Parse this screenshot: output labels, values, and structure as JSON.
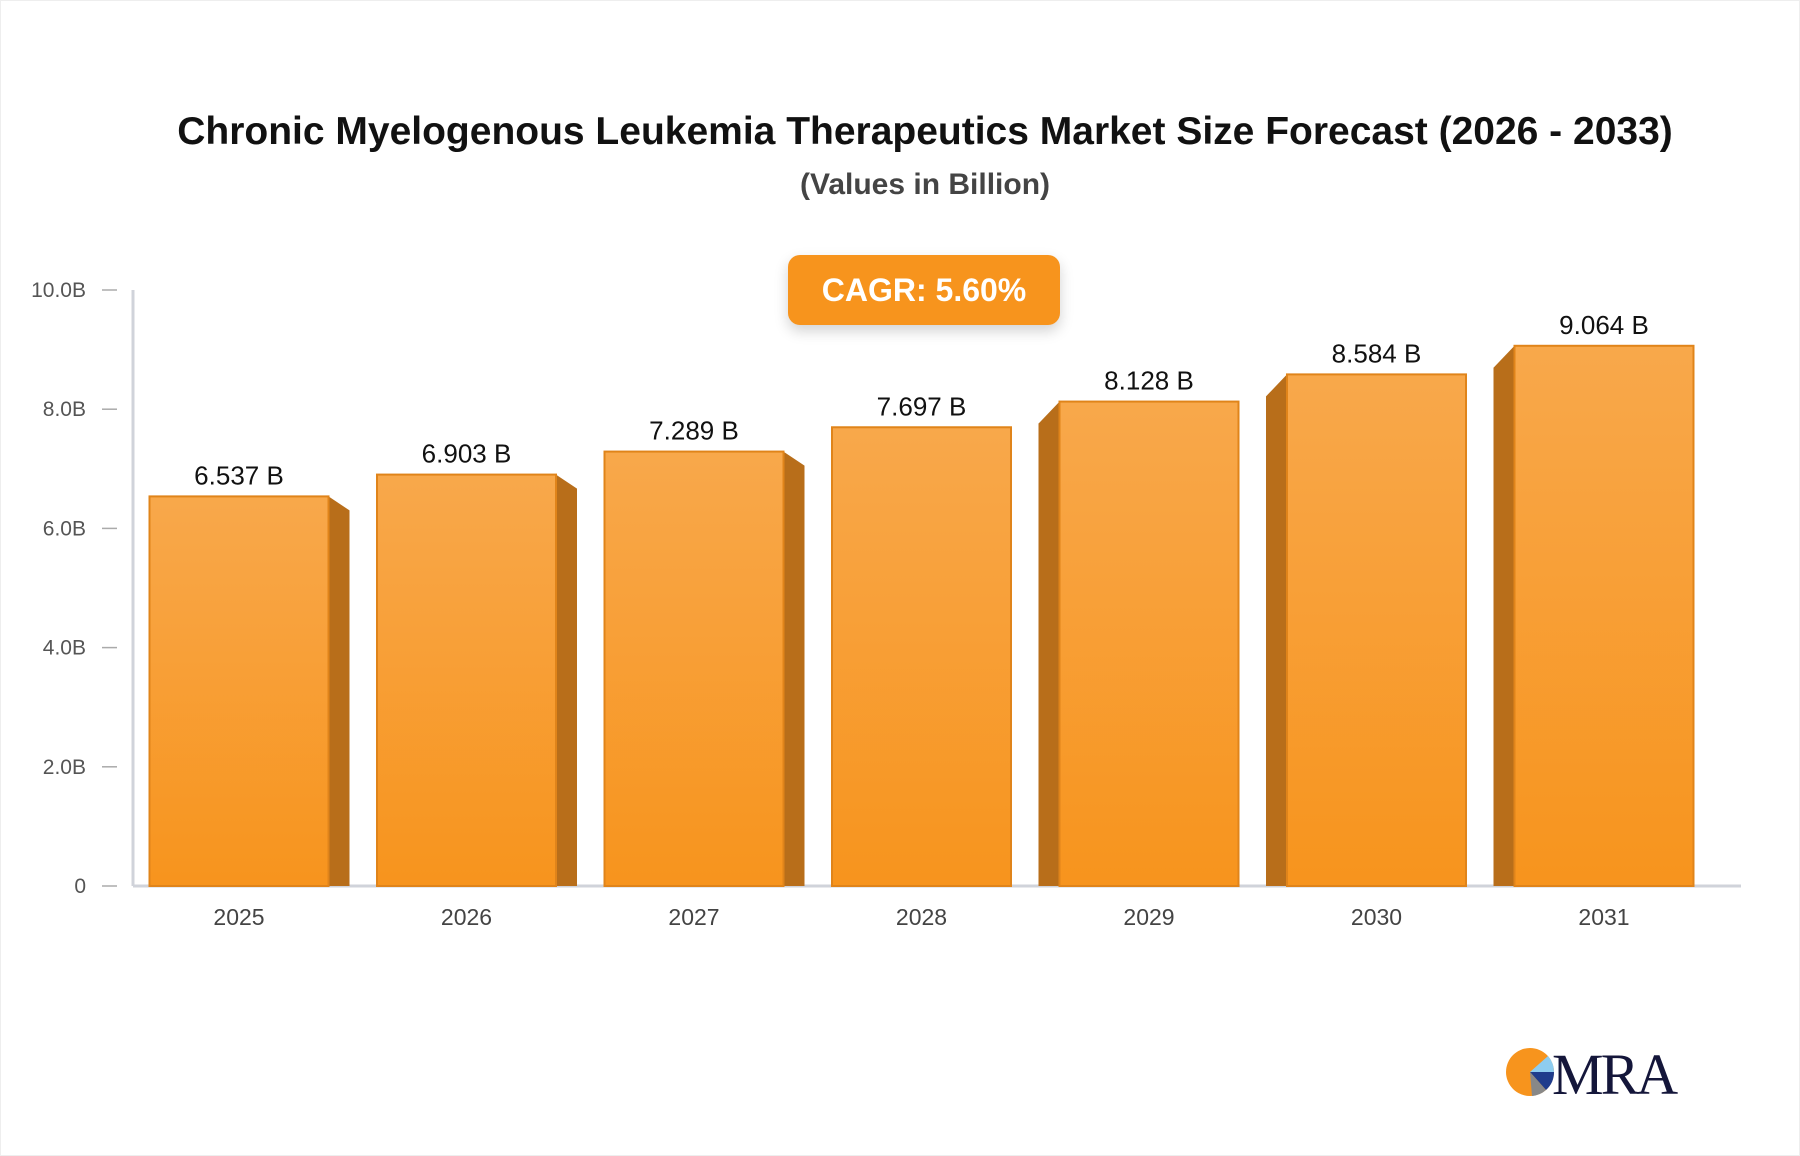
{
  "chart_data": {
    "type": "bar",
    "title": "Chronic Myelogenous Leukemia Therapeutics Market Size Forecast (2026 - 2033)",
    "subtitle": "(Values in Billion)",
    "annotation": "CAGR: 5.60%",
    "categories": [
      "2025",
      "2026",
      "2027",
      "2028",
      "2029",
      "2030",
      "2031"
    ],
    "values": [
      6.537,
      6.903,
      7.289,
      7.697,
      8.128,
      8.584,
      9.064
    ],
    "data_labels": [
      "6.537 B",
      "6.903 B",
      "7.289 B",
      "7.697 B",
      "8.128 B",
      "8.584 B",
      "9.064 B"
    ],
    "y_ticks": [
      0,
      2,
      4,
      6,
      8,
      10
    ],
    "y_tick_labels": [
      "0",
      "2.0B",
      "4.0B",
      "6.0B",
      "8.0B",
      "10.0B"
    ],
    "ylim": [
      0,
      10
    ],
    "xlabel": "",
    "ylabel": "",
    "grid": false,
    "colors": {
      "bar_top": "#f8a84b",
      "bar_bottom": "#f7941d",
      "bar_side": "#b86e1a",
      "bar_edge": "#e0841a",
      "badge": "#f7941d"
    }
  },
  "logo": {
    "text": "MRA",
    "colors": [
      "#f7941d",
      "#8ecdf0",
      "#1f3c8c",
      "#888888",
      "#14163a"
    ]
  }
}
